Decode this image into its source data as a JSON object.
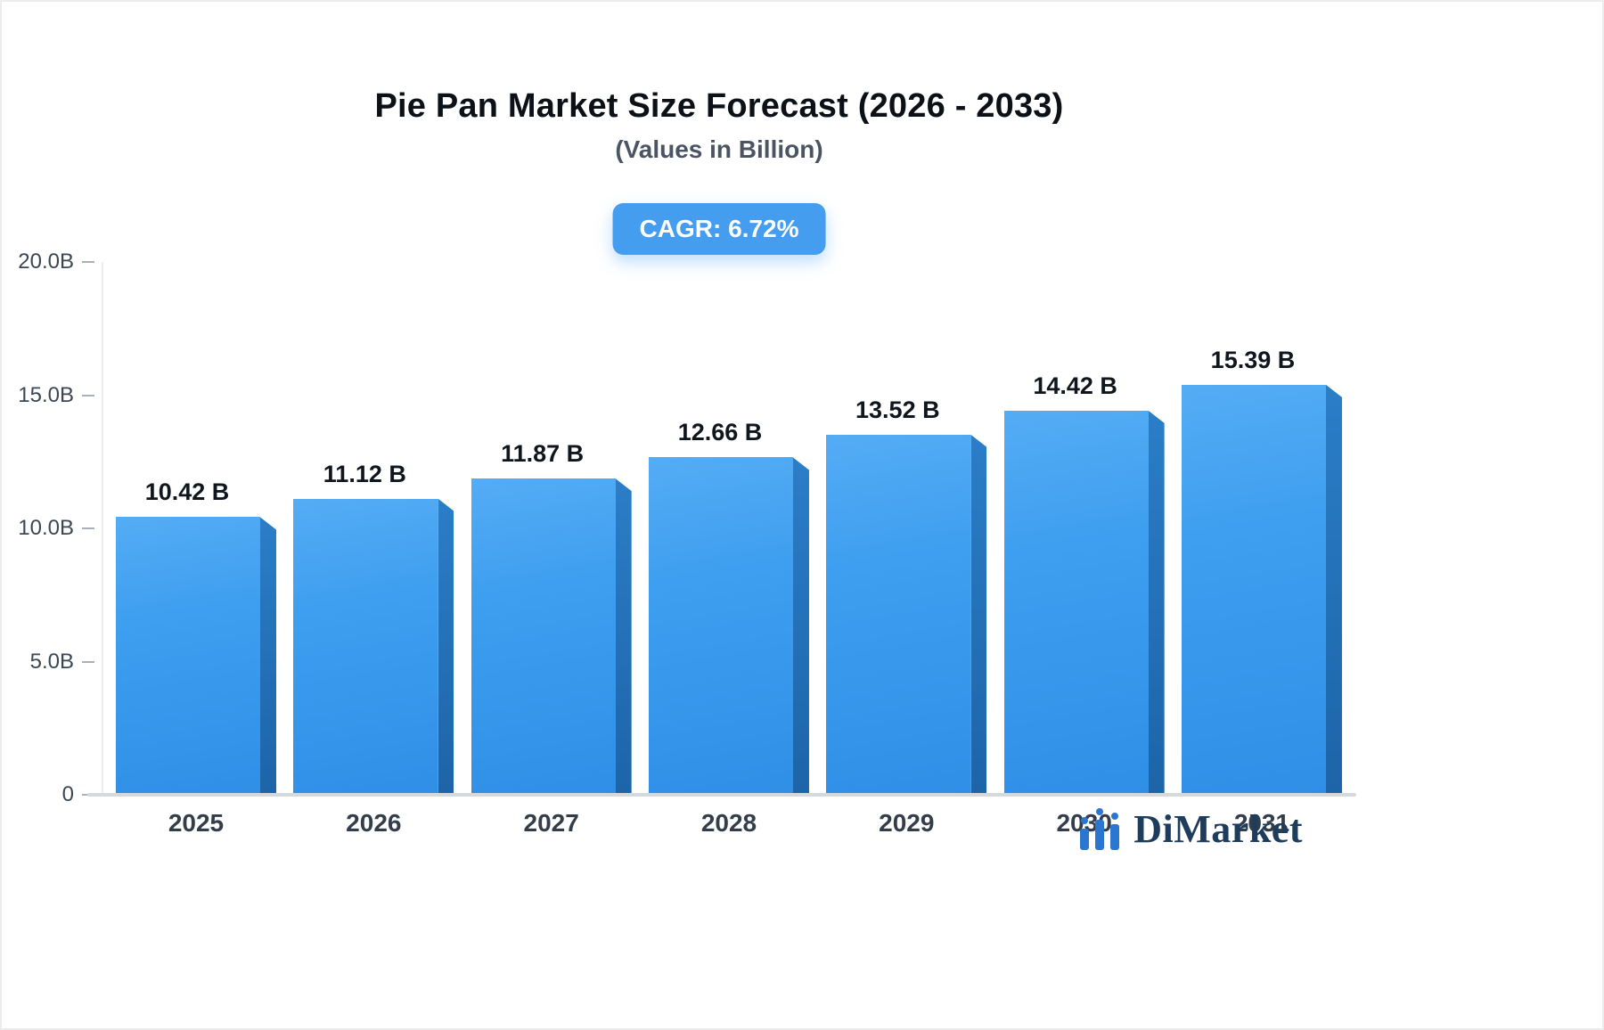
{
  "title": "Pie Pan Market Size Forecast (2026 - 2033)",
  "subtitle": "(Values in Billion)",
  "badge": {
    "label": "CAGR: 6.72%"
  },
  "chart_data": {
    "type": "bar",
    "categories": [
      "2025",
      "2026",
      "2027",
      "2028",
      "2029",
      "2030",
      "2031"
    ],
    "values": [
      10.42,
      11.12,
      11.87,
      12.66,
      13.52,
      14.42,
      15.39
    ],
    "value_labels": [
      "10.42 B",
      "11.12 B",
      "11.87 B",
      "12.66 B",
      "13.52 B",
      "14.42 B",
      "15.39 B"
    ],
    "title": "Pie Pan Market Size Forecast (2026 - 2033)",
    "xlabel": "",
    "ylabel": "",
    "ylim": [
      0,
      20
    ],
    "yticks": [
      {
        "value": 0,
        "label": "0"
      },
      {
        "value": 5,
        "label": "5.0B"
      },
      {
        "value": 10,
        "label": "10.0B"
      },
      {
        "value": 15,
        "label": "15.0B"
      },
      {
        "value": 20,
        "label": "20.0B"
      }
    ],
    "grid": "off",
    "legend": "none",
    "bar_color_top": "#55acf4",
    "bar_color_bottom": "#2f8fe6",
    "bar_side_color": "#1d64a8"
  },
  "logo": {
    "text": "DiMarket"
  },
  "colors": {
    "badge_bg": "#459df0",
    "badge_text": "#ffffff",
    "title_text": "#0c1118",
    "subtitle_text": "#4a5462",
    "axis_line": "#d6d9dc",
    "logo_navy": "#1e3d5c",
    "logo_blue": "#2b77d0"
  }
}
